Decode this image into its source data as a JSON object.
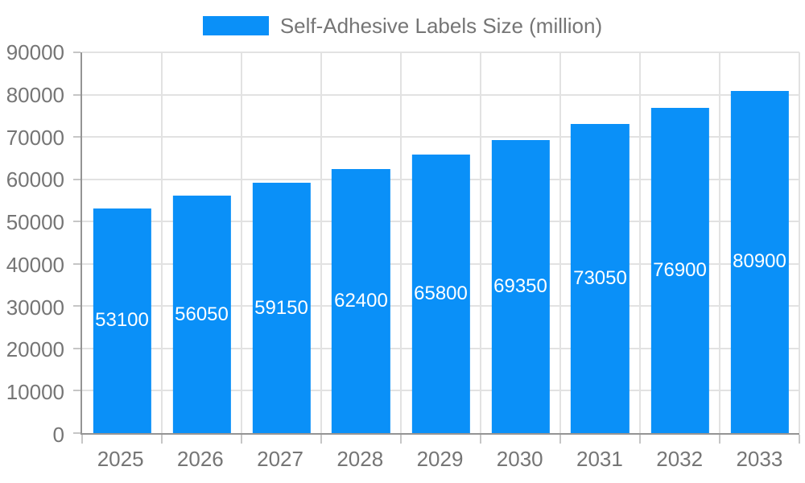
{
  "chart_data": {
    "type": "bar",
    "title": "Self-Adhesive Labels Size (million)",
    "categories": [
      "2025",
      "2026",
      "2027",
      "2028",
      "2029",
      "2030",
      "2031",
      "2032",
      "2033"
    ],
    "values": [
      53100,
      56050,
      59150,
      62400,
      65800,
      69350,
      73050,
      76900,
      80900
    ],
    "value_labels": [
      "53100",
      "56050",
      "59150",
      "62400",
      "65800",
      "69350",
      "73050",
      "76900",
      "80900"
    ],
    "xlabel": "",
    "ylabel": "",
    "ylim": [
      0,
      90000
    ],
    "ytick_step": 10000,
    "ytick_labels": [
      "0",
      "10000",
      "20000",
      "30000",
      "40000",
      "50000",
      "60000",
      "70000",
      "80000",
      "90000"
    ],
    "grid": true,
    "legend_position": "top",
    "colors": {
      "bar": "#0a90f8",
      "grid": "#e2e2e2",
      "axis": "#949494",
      "tick": "#c6c6c6",
      "text": "#757575",
      "value_label": "#ffffff",
      "background": "#ffffff"
    }
  }
}
